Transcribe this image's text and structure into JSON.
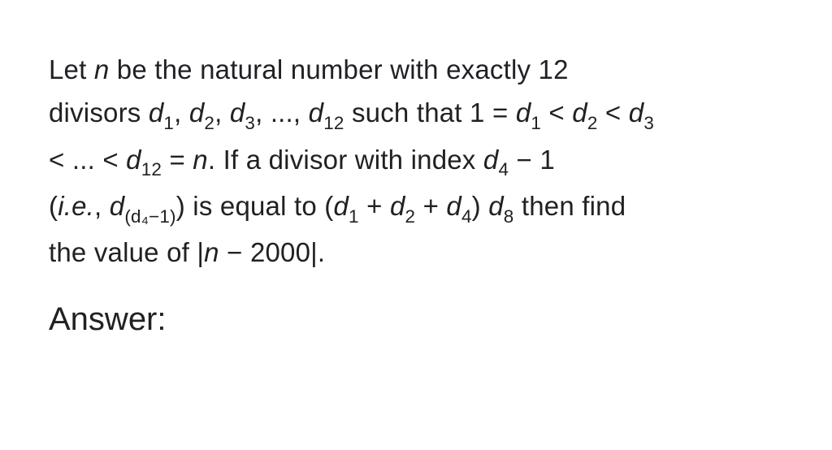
{
  "problem": {
    "line1_part1": "Let ",
    "line1_var_n": "n",
    "line1_part2": " be the natural number with exactly 12",
    "line2_part1": "divisors ",
    "line2_var_d": "d",
    "line2_sub1": "1",
    "line2_comma1": ", ",
    "line2_sub2": "2",
    "line2_comma2": ", ",
    "line2_sub3": "3",
    "line2_ellipsis": ", ..., ",
    "line2_sub12": "12",
    "line2_part2": " such that 1 = ",
    "line2_lt1": " < ",
    "line2_lt2": " < ",
    "line3_part1": "< ... < ",
    "line3_eq_n": " = ",
    "line3_part2": ". If a divisor with index ",
    "line3_sub4": "4",
    "line3_minus1": " − 1",
    "line4_ie_open": "(",
    "line4_ie": "i.e.",
    "line4_ie_comma": ", ",
    "line4_sub_expr": "(d₄−1)",
    "line4_close": ")",
    "line4_part2": " is equal to (",
    "line4_plus1": " + ",
    "line4_plus2": " + ",
    "line4_part3": ") ",
    "line4_sub8": "8",
    "line4_part4": " then find",
    "line5_part1": "the value of |",
    "line5_part2": " − 2000|."
  },
  "answer_label": "Answer:"
}
